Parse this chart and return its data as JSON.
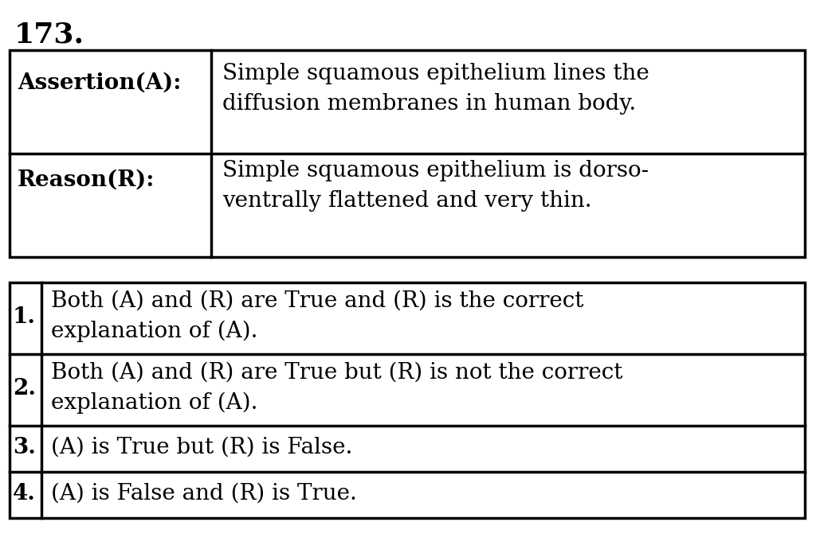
{
  "question_number": "173.",
  "assertion_label": "Assertion(A):",
  "assertion_text_line1": "Simple squamous epithelium lines the",
  "assertion_text_line2": "diffusion membranes in human body.",
  "reason_label": "Reason(R):",
  "reason_text_line1": "Simple squamous epithelium is dorso-",
  "reason_text_line2": "ventrally flattened and very thin.",
  "options": [
    {
      "num": "1.",
      "line1": "Both (A) and (R) are True and (R) is the correct",
      "line2": "explanation of (A)."
    },
    {
      "num": "2.",
      "line1": "Both (A) and (R) are True but (R) is not the correct",
      "line2": "explanation of (A)."
    },
    {
      "num": "3.",
      "line1": "(A) is True but (R) is False.",
      "line2": null
    },
    {
      "num": "4.",
      "line1": "(A) is False and (R) is True.",
      "line2": null
    }
  ],
  "bg_color": "#ffffff",
  "text_color": "#000000",
  "border_color": "#000000",
  "font_size_title": 26,
  "font_size_label": 20,
  "font_size_content": 20,
  "font_size_options": 20
}
